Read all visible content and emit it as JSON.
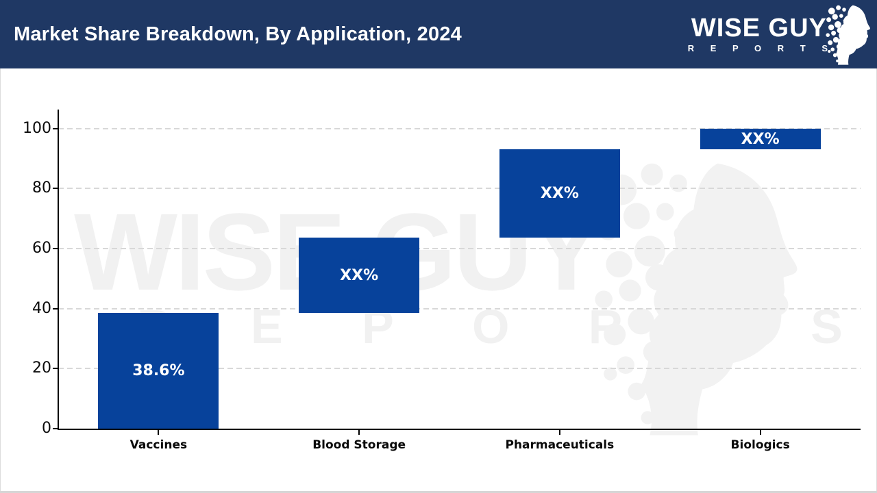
{
  "header": {
    "title": "Market Share Breakdown, By Application, 2024",
    "logo": {
      "line1": "WISE GUY",
      "line2": "R E P O R T S",
      "face_icon": "dotted-head-profile-icon"
    }
  },
  "watermark": {
    "line1": "WISE GUY",
    "line2": "R E P O R T S",
    "face_icon": "dotted-head-profile-icon"
  },
  "colors": {
    "header_bg": "#1f3864",
    "bar_fill": "#07429b",
    "bar_label_text": "#ffffff",
    "gridline": "#d8d8d8",
    "axis": "#000000",
    "watermark": "#f2f2f2"
  },
  "chart_data": {
    "type": "bar",
    "subtype": "waterfall",
    "title": "Market Share Breakdown, By Application, 2024",
    "xlabel": "",
    "ylabel": "",
    "ylim": [
      0,
      100
    ],
    "yticks": [
      0,
      20,
      40,
      60,
      80,
      100
    ],
    "grid": "horizontal dashed",
    "legend": "none",
    "categories": [
      "Vaccines",
      "Blood Storage",
      "Pharmaceuticals",
      "Biologics"
    ],
    "segments": [
      {
        "category": "Vaccines",
        "start": 0,
        "end": 38.6,
        "value": 38.6,
        "label": "38.6%"
      },
      {
        "category": "Blood Storage",
        "start": 38.6,
        "end": 63.6,
        "value": 25.0,
        "label": "XX%"
      },
      {
        "category": "Pharmaceuticals",
        "start": 63.6,
        "end": 93.0,
        "value": 29.4,
        "label": "XX%"
      },
      {
        "category": "Biologics",
        "start": 93.0,
        "end": 100,
        "value": 7.0,
        "label": "XX%"
      }
    ]
  }
}
